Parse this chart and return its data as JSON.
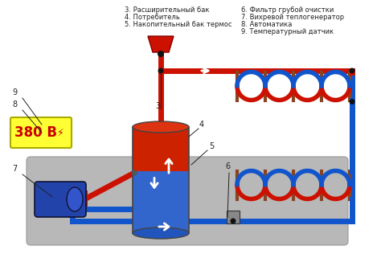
{
  "legend_left": [
    "3. Расширительный бак",
    "4. Потребитель",
    "5. Накопительный бак термос"
  ],
  "legend_right": [
    "6. Фильтр грубой очистки",
    "7. Вихревой теплогенератор",
    "8. Автоматика",
    "9. Температурный датчик"
  ],
  "bg_color": "#ffffff",
  "plate_color": "#b8b8b8",
  "pipe_red": "#cc1100",
  "pipe_blue": "#1155cc",
  "voltage_bg": "#ffff33",
  "voltage_text_color": "#cc0000",
  "voltage_label": "380 В",
  "pump_color": "#2244aa",
  "label_fontsize": 6.0,
  "text_color": "#222222"
}
